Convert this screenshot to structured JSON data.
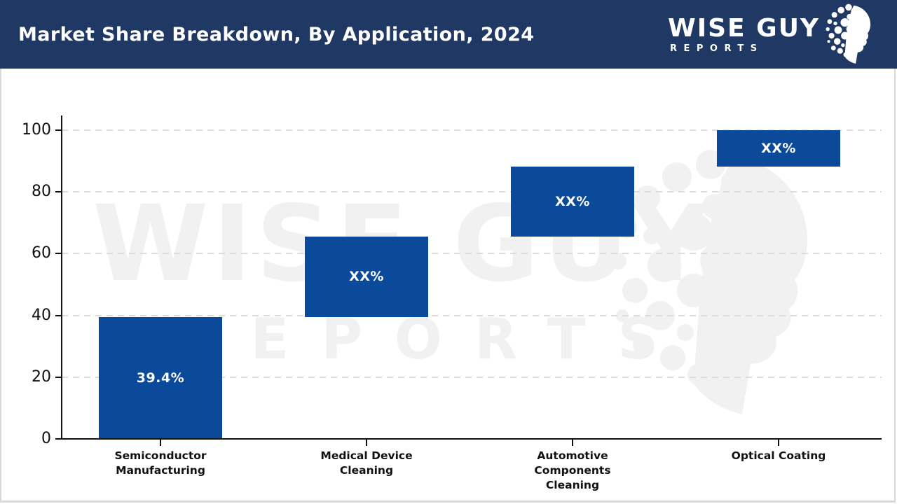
{
  "header": {
    "title": "Market Share Breakdown, By Application, 2024",
    "logo": {
      "line1": "WISE GUY",
      "line2": "REPORTS"
    }
  },
  "watermark": {
    "line1": "WISE GUY",
    "line2": "REPORTS"
  },
  "colors": {
    "header_bg": "#1f3864",
    "bar": "#0b4a9b",
    "bar_label": "#ffffff",
    "grid": "#dcdcdc",
    "axis": "#111111",
    "watermark": "#f1f1f1",
    "frame_border": "#d9d9d9"
  },
  "chart_data": {
    "type": "bar",
    "subtype": "waterfall",
    "title": "Market Share Breakdown, By Application, 2024",
    "categories": [
      "Semiconductor\nManufacturing",
      "Medical Device\nCleaning",
      "Automotive\nComponents\nCleaning",
      "Optical Coating"
    ],
    "segments": [
      {
        "label": "39.4%",
        "start": 0,
        "end": 39.4
      },
      {
        "label": "XX%",
        "start": 39.4,
        "end": 65.6
      },
      {
        "label": "XX%",
        "start": 65.6,
        "end": 88.1
      },
      {
        "label": "XX%",
        "start": 88.1,
        "end": 100
      }
    ],
    "yticks": [
      0,
      20,
      40,
      60,
      80,
      100
    ],
    "ylim": [
      0,
      105
    ],
    "xlabel": "",
    "ylabel": "",
    "grid": "horizontal-dashed",
    "legend": null
  }
}
